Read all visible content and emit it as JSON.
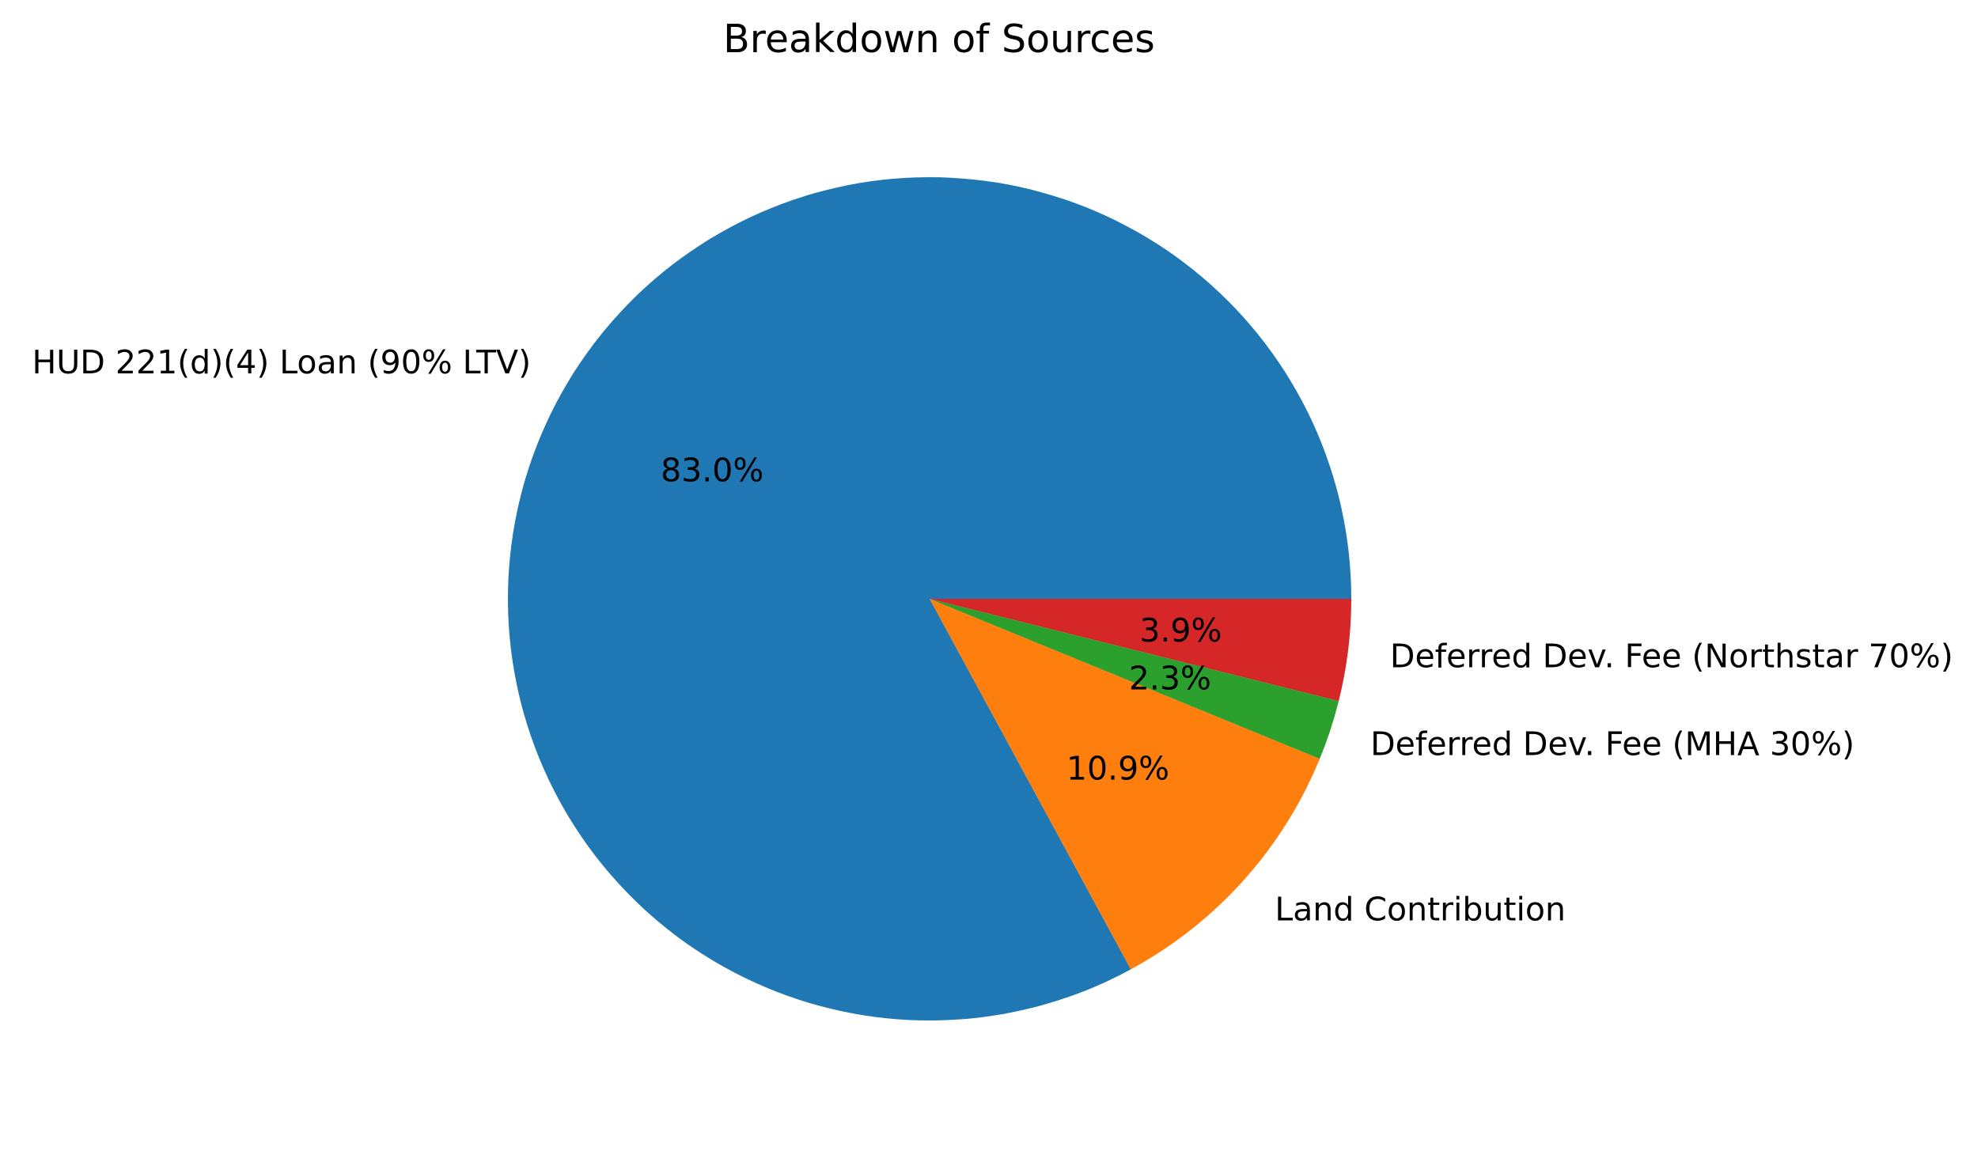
{
  "chart_data": {
    "type": "pie",
    "title": "Breakdown of Sources",
    "slices": [
      {
        "label": "HUD 221(d)(4) Loan (90% LTV)",
        "value": 83.0,
        "pct_label": "83.0%",
        "color": "#1f77b4"
      },
      {
        "label": "Land Contribution",
        "value": 10.9,
        "pct_label": "10.9%",
        "color": "#ff7f0e"
      },
      {
        "label": "Deferred Dev. Fee (MHA 30%)",
        "value": 2.3,
        "pct_label": "2.3%",
        "color": "#2ca02c"
      },
      {
        "label": "Deferred Dev. Fee (Northstar 70%)",
        "value": 3.9,
        "pct_label": "3.9%",
        "color": "#d62728"
      }
    ],
    "start_angle": 0,
    "counterclock": true,
    "pct_distance": 0.6,
    "label_distance": 1.1,
    "background_color": "#ffffff",
    "text_color": "#000000",
    "legend": "none"
  }
}
